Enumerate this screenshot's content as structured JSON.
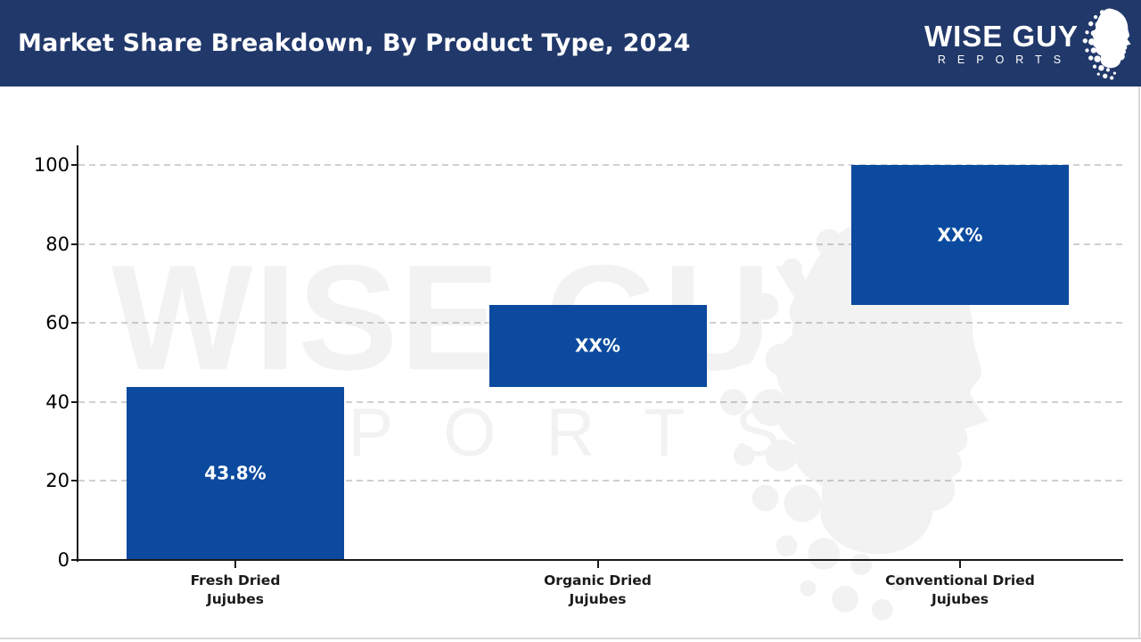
{
  "header": {
    "title": "Market Share Breakdown, By Product Type, 2024",
    "logo": {
      "line1": "WISE GUY",
      "line2": "REPORTS"
    }
  },
  "watermark": {
    "line1": "WISE GUY",
    "line2": "REPORTS"
  },
  "colors": {
    "header_bg": "#21386a",
    "bar": "#0b4a9e",
    "grid": "#d9d9d9",
    "axis": "#1a1a1a",
    "bar_label": "#ffffff",
    "watermark": "#f2f2f2",
    "title_text": "#ffffff"
  },
  "chart_data": {
    "type": "bar",
    "subtype": "waterfall",
    "title": "Market Share Breakdown, By Product Type, 2024",
    "xlabel": "",
    "ylabel": "",
    "ylim": [
      0,
      100
    ],
    "yticks": [
      0,
      20,
      40,
      60,
      80,
      100
    ],
    "grid": "dashed horizontal",
    "legend": "none",
    "bar_color": "#0b4a9e",
    "categories": [
      [
        "Fresh Dried",
        "Jujubes"
      ],
      [
        "Organic Dried",
        "Jujubes"
      ],
      [
        "Conventional Dried",
        "Jujubes"
      ]
    ],
    "series": [
      {
        "name": "Market Share",
        "segments": [
          {
            "from": 0,
            "to": 43.8,
            "label": "43.8%"
          },
          {
            "from": 43.8,
            "to": 64.5,
            "label": "XX%"
          },
          {
            "from": 64.5,
            "to": 100,
            "label": "XX%"
          }
        ]
      }
    ]
  }
}
